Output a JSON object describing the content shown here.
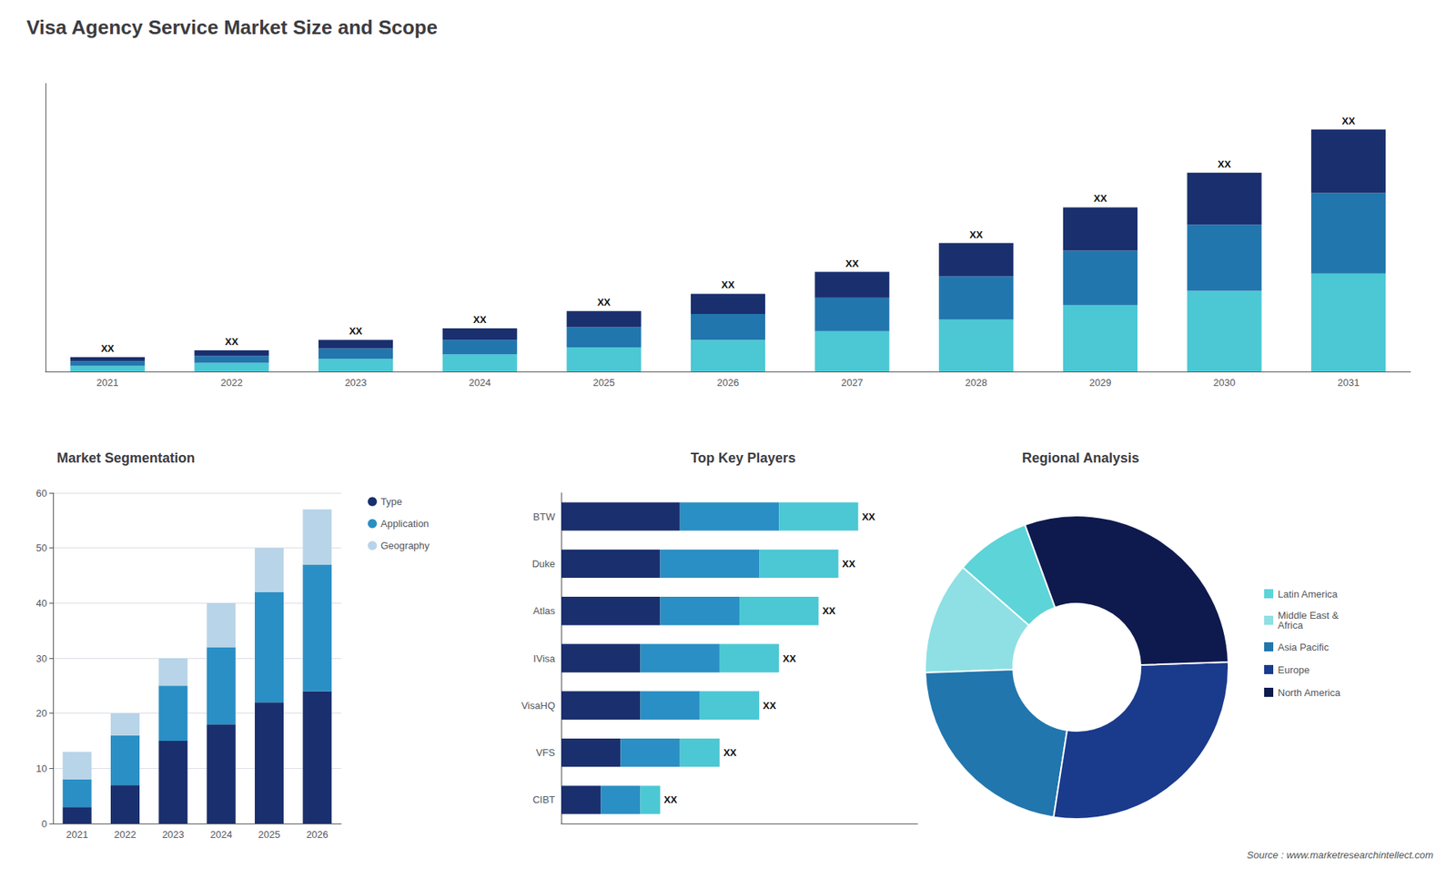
{
  "title": "Visa Agency Service Market Size and Scope",
  "annotations": [
    "Source : www.marketresearchintellect.com"
  ],
  "chart_data": [
    {
      "type": "bar",
      "stacked": true,
      "categories": [
        "2021",
        "2022",
        "2023",
        "2024",
        "2025",
        "2026",
        "2027",
        "2028",
        "2029",
        "2030",
        "2031"
      ],
      "series": [
        {
          "color": "#4bc8d4",
          "values": [
            1.0,
            1.5,
            2.2,
            3.0,
            4.2,
            5.5,
            7.0,
            9.0,
            11.5,
            14.0,
            17.0
          ]
        },
        {
          "color": "#2176ae",
          "values": [
            0.8,
            1.2,
            1.8,
            2.5,
            3.5,
            4.5,
            5.8,
            7.5,
            9.5,
            11.5,
            14.0
          ]
        },
        {
          "color": "#1a2f6e",
          "values": [
            0.7,
            1.0,
            1.5,
            2.0,
            2.8,
            3.5,
            4.5,
            5.8,
            7.5,
            9.0,
            11.0
          ]
        }
      ],
      "annotations": [
        "XX",
        "XX",
        "XX",
        "XX",
        "XX",
        "XX",
        "XX",
        "XX",
        "XX",
        "XX",
        "XX"
      ],
      "ylim": [
        0,
        50
      ],
      "tick_labels": "x",
      "grid": false
    },
    {
      "type": "bar",
      "title": "Market Segmentation",
      "stacked": true,
      "categories": [
        "2021",
        "2022",
        "2023",
        "2024",
        "2025",
        "2026"
      ],
      "series": [
        {
          "name": "Type",
          "color": "#1a2f6e",
          "values": [
            3,
            7,
            15,
            18,
            22,
            24
          ]
        },
        {
          "name": "Application",
          "color": "#2a8fc4",
          "values": [
            5,
            9,
            10,
            14,
            20,
            23
          ]
        },
        {
          "name": "Geography",
          "color": "#b8d4e8",
          "values": [
            5,
            4,
            5,
            8,
            8,
            10
          ]
        }
      ],
      "ylim": [
        0,
        60
      ],
      "yticks": [
        0,
        10,
        20,
        30,
        40,
        50,
        60
      ],
      "grid": true,
      "legend": "right"
    },
    {
      "type": "bar",
      "title": "Top Key Players",
      "orientation": "horizontal",
      "stacked": true,
      "categories": [
        "BTW",
        "Duke",
        "Atlas",
        "IVisa",
        "VisaHQ",
        "VFS",
        "CIBT"
      ],
      "series": [
        {
          "color": "#1a2f6e",
          "values": [
            6,
            5,
            5,
            4,
            4,
            3,
            2
          ]
        },
        {
          "color": "#2a8fc4",
          "values": [
            5,
            5,
            4,
            4,
            3,
            3,
            2
          ]
        },
        {
          "color": "#4bc8d4",
          "values": [
            4,
            4,
            4,
            3,
            3,
            2,
            1
          ]
        }
      ],
      "annotations": [
        "XX",
        "XX",
        "XX",
        "XX",
        "XX",
        "XX",
        "XX"
      ],
      "xlim": [
        0,
        18
      ],
      "tick_labels": "y",
      "grid": false
    },
    {
      "type": "pie",
      "title": "Regional Analysis",
      "categories": [
        "Latin America",
        "Middle East &\nAfrica",
        "Asia Pacific",
        "Europe",
        "North America"
      ],
      "values": [
        8,
        12,
        22,
        28,
        30
      ],
      "colors": [
        "#5dd4d8",
        "#8ee0e4",
        "#2176ae",
        "#1a3a8c",
        "#0e1a4e"
      ],
      "legend": "right"
    }
  ]
}
